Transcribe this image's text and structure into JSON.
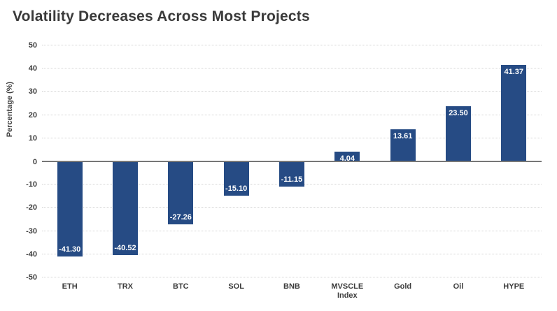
{
  "chart_data": {
    "type": "bar",
    "title": "Volatility Decreases Across Most Projects",
    "ylabel": "Percentage (%)",
    "xlabel": "",
    "categories": [
      "ETH",
      "TRX",
      "BTC",
      "SOL",
      "BNB",
      "MVSCLE Index",
      "Gold",
      "Oil",
      "HYPE"
    ],
    "values": [
      -41.3,
      -40.52,
      -27.26,
      -15.1,
      -11.15,
      4.04,
      13.61,
      23.5,
      41.37
    ],
    "value_labels": [
      "-41.30",
      "-40.52",
      "-27.26",
      "-15.10",
      "-11.15",
      "4.04",
      "13.61",
      "23.50",
      "41.37"
    ],
    "ylim": [
      -50,
      50
    ],
    "ytick_step": 10,
    "ytick_labels": [
      "50",
      "40",
      "30",
      "20",
      "10",
      "0",
      "-10",
      "-20",
      "-30",
      "-40",
      "-50"
    ],
    "grid": "horizontal-dotted",
    "legend": "none",
    "colors": {
      "bar": "#264b84",
      "value_label": "#ffffff",
      "gridline": "#d4d4d4",
      "zero_line": "#777777",
      "title": "#3a3a3a",
      "axis_text": "#3d3d3d",
      "background": "#ffffff"
    }
  }
}
